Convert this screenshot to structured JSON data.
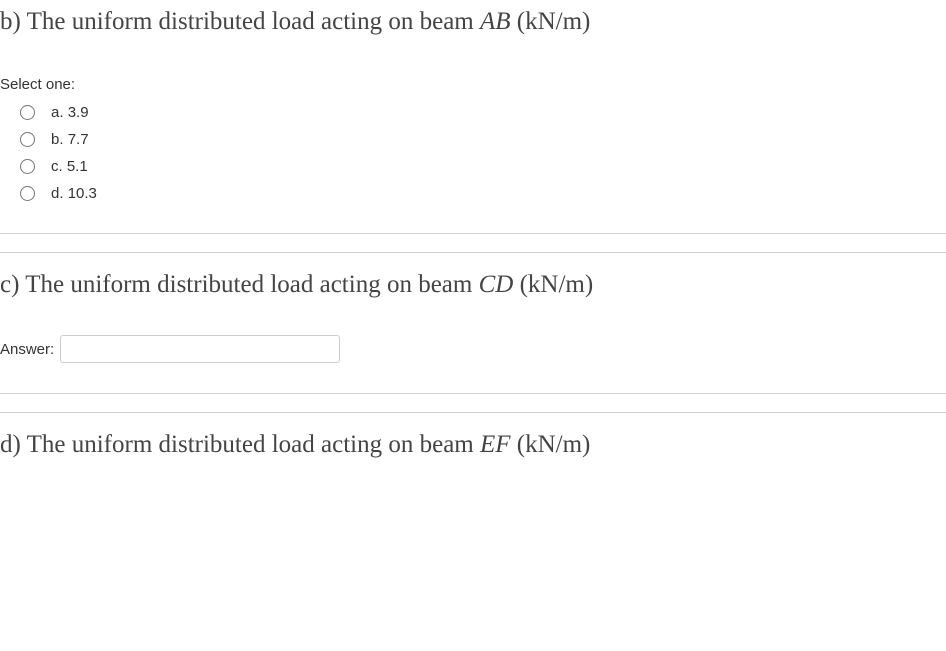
{
  "questions": {
    "b": {
      "prefix": "b) The uniform distributed load acting on beam ",
      "beam": "AB",
      "suffix": " (kN/m)",
      "select_label": "Select one:",
      "options": [
        {
          "letter": "a.",
          "value": "3.9"
        },
        {
          "letter": "b.",
          "value": "7.7"
        },
        {
          "letter": "c.",
          "value": "5.1"
        },
        {
          "letter": "d.",
          "value": "10.3"
        }
      ]
    },
    "c": {
      "prefix": "c) The uniform distributed load acting on beam ",
      "beam": "CD",
      "suffix": " (kN/m)",
      "answer_label": "Answer:",
      "answer_value": ""
    },
    "d": {
      "prefix": "d) The uniform distributed load acting on beam ",
      "beam": "EF",
      "suffix": " (kN/m)"
    }
  },
  "styling": {
    "title_fontsize": 25,
    "body_fontsize": 15,
    "title_color": "#444444",
    "body_color": "#333333",
    "divider_color": "#d0d0d0",
    "input_border_color": "#cccccc",
    "background": "#ffffff"
  }
}
